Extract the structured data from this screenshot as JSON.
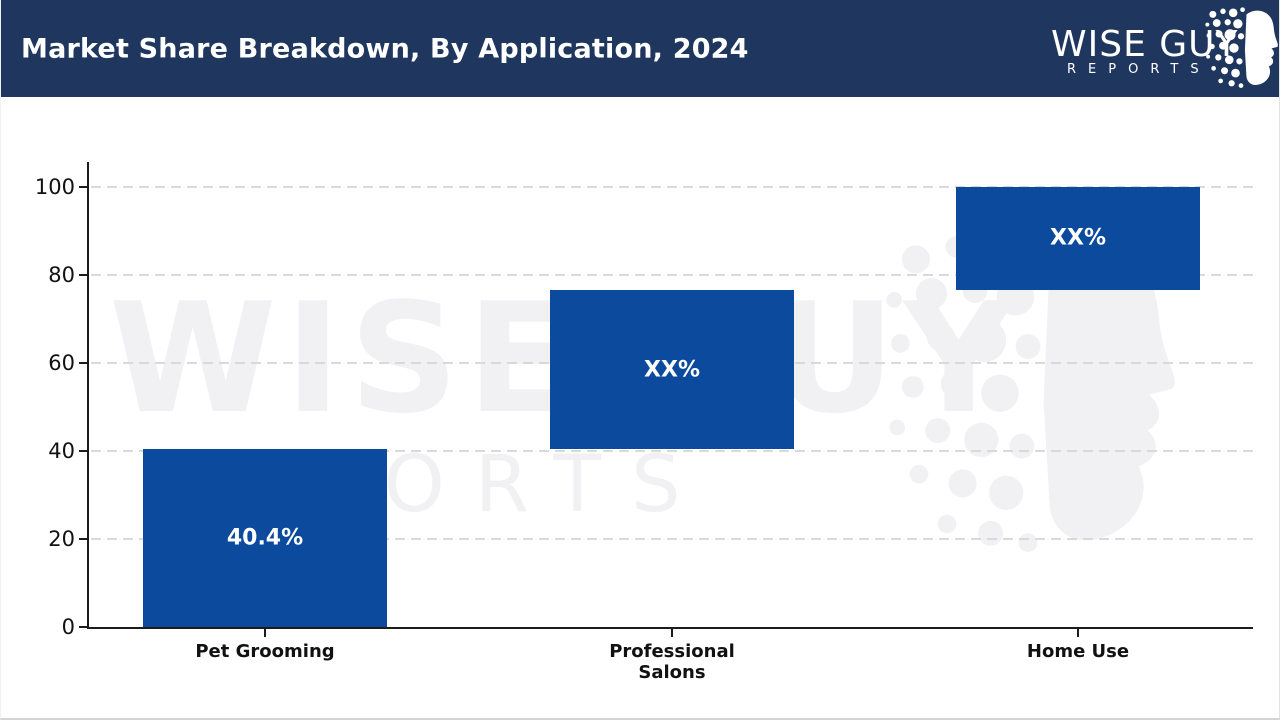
{
  "header": {
    "title": "Market Share Breakdown, By Application, 2024",
    "bg_color": "#1F375F",
    "logo": {
      "line1": "WISE GUY",
      "line2": "REPORTS"
    }
  },
  "watermark": {
    "line1": "WISE GUY",
    "line2": "REPORTS"
  },
  "chart_data": {
    "type": "bar",
    "subtype": "floating-segment (waterfall-style market share breakdown)",
    "title": "Market Share Breakdown, By Application, 2024",
    "categories": [
      "Pet Grooming",
      "Professional Salons",
      "Home Use"
    ],
    "bars": [
      {
        "category": "Pet Grooming",
        "start": 0,
        "end": 40.4,
        "label": "40.4%"
      },
      {
        "category": "Professional Salons",
        "start": 40.4,
        "end": 76.6,
        "label": "XX%"
      },
      {
        "category": "Home Use",
        "start": 76.6,
        "end": 100,
        "label": "XX%"
      }
    ],
    "xlabel": "",
    "ylabel": "",
    "y_ticks": [
      0,
      20,
      40,
      60,
      80,
      100
    ],
    "ylim": [
      0,
      106
    ],
    "grid": true,
    "legend": false,
    "bar_color": "#0B4A9D",
    "bar_label_color": "#ffffff",
    "grid_color": "#d9d9d9",
    "axis_color": "#1c1c1c"
  }
}
